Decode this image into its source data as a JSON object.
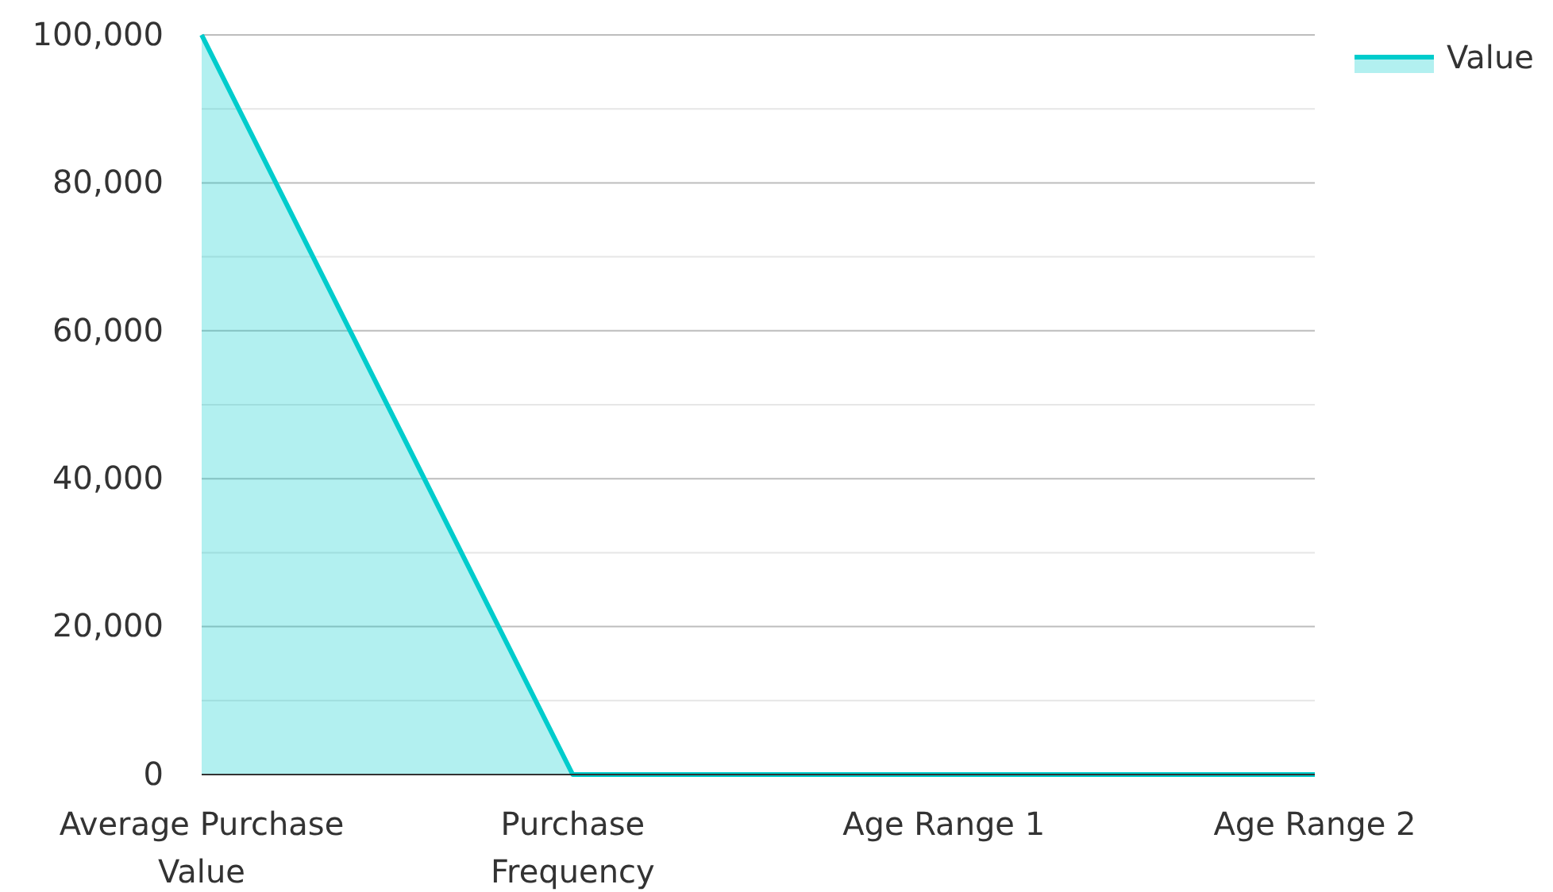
{
  "chart_data": {
    "type": "area",
    "categories": [
      "Average Purchase Value",
      "Purchase Frequency",
      "Age Range 1",
      "Age Range 2"
    ],
    "series": [
      {
        "name": "Value",
        "color": "#00cccc",
        "values": [
          100000,
          0,
          0,
          0
        ]
      }
    ],
    "ylim": [
      0,
      100000
    ],
    "yticks": [
      0,
      {
        "value": 10000,
        "label": null
      },
      {
        "value": 20000,
        "label": "20,000"
      },
      {
        "value": 30000,
        "label": null
      },
      {
        "value": 40000,
        "label": "40,000"
      },
      {
        "value": 50000,
        "label": null
      },
      {
        "value": 60000,
        "label": "60,000"
      },
      {
        "value": 70000,
        "label": null
      },
      {
        "value": 80000,
        "label": "80,000"
      },
      {
        "value": 90000,
        "label": null
      },
      {
        "value": 100000,
        "label": "100,000"
      }
    ],
    "grid": "y",
    "legend": "top right"
  }
}
